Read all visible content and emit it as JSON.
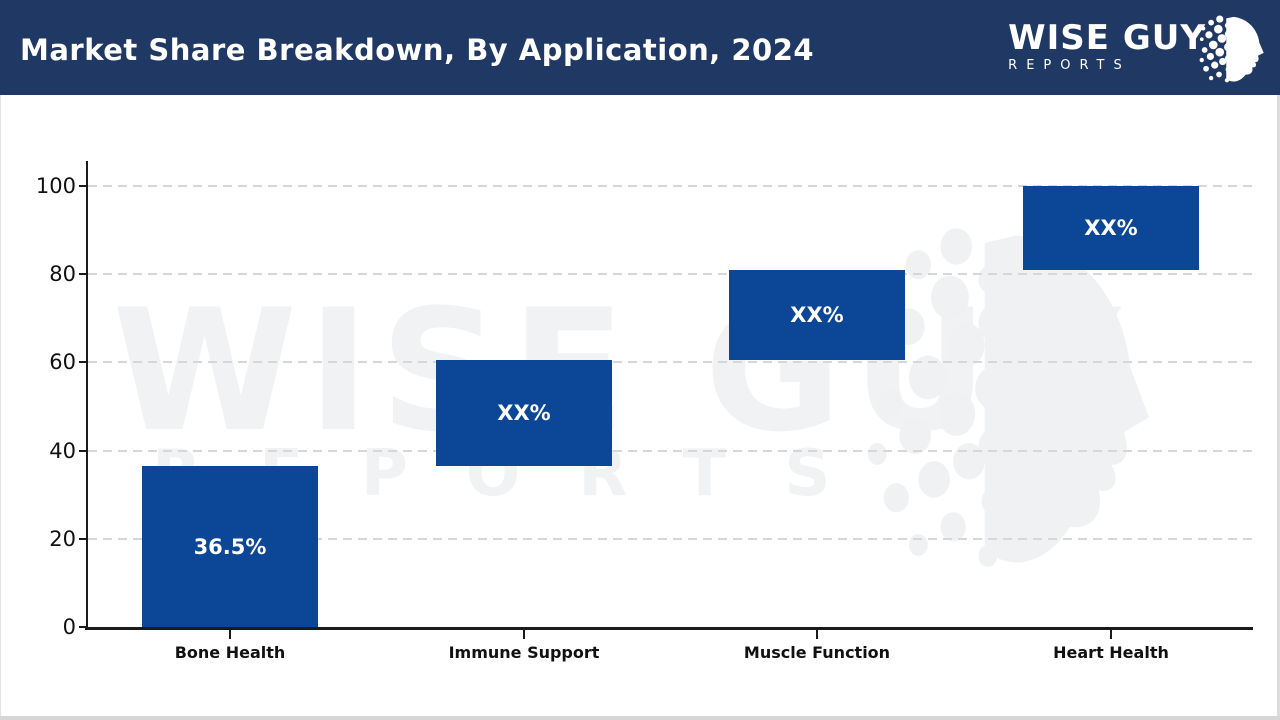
{
  "header": {
    "title": "Market Share Breakdown, By Application, 2024",
    "bg_color": "#203864",
    "logo": {
      "line1": "WISE GUY",
      "line2": "REPORTS"
    }
  },
  "watermark": {
    "line1": "WISE GUY",
    "line2": "REPORTS"
  },
  "chart_data": {
    "type": "bar",
    "subtype": "waterfall-floating-bars",
    "title": "Market Share Breakdown, By Application, 2024",
    "categories": [
      "Bone Health",
      "Immune Support",
      "Muscle Function",
      "Heart Health"
    ],
    "segments": [
      {
        "category": "Bone Health",
        "start": 0,
        "end": 36.5,
        "label": "36.5%"
      },
      {
        "category": "Immune Support",
        "start": 36.5,
        "end": 60.5,
        "label": "XX%"
      },
      {
        "category": "Muscle Function",
        "start": 60.5,
        "end": 81,
        "label": "XX%"
      },
      {
        "category": "Heart Health",
        "start": 81,
        "end": 100,
        "label": "XX%"
      }
    ],
    "xlabel": "",
    "ylabel": "",
    "ylim": [
      0,
      100
    ],
    "yticks": [
      0,
      20,
      40,
      60,
      80,
      100
    ],
    "grid": "horizontal dashed",
    "legend": "none",
    "bar_color": "#0b4697",
    "bar_label_color": "#ffffff",
    "gridline_color": "#d7d7d7",
    "axis_color": "#1a1a1a"
  }
}
